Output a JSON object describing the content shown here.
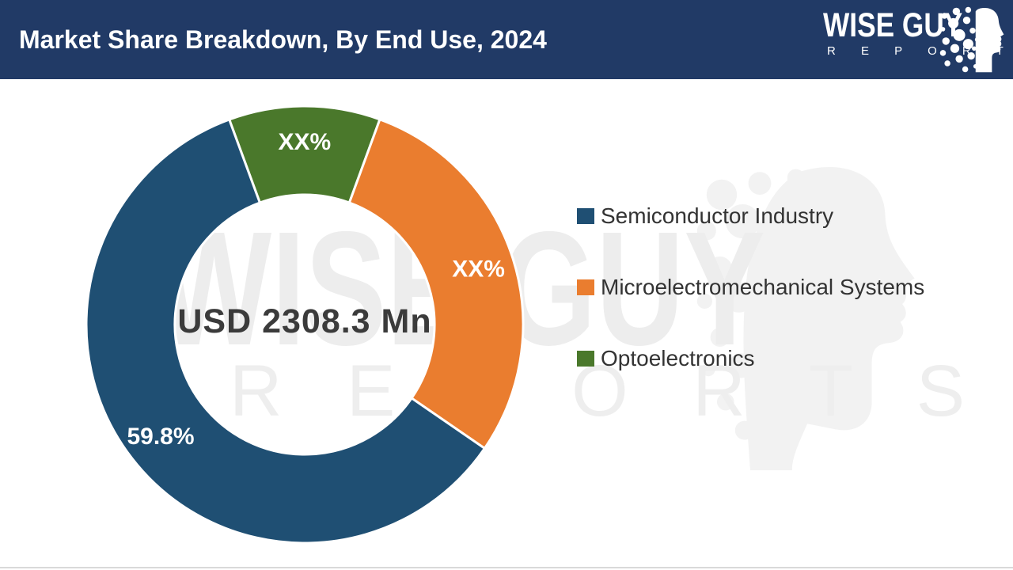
{
  "header": {
    "title": "Market Share Breakdown, By End Use, 2024",
    "logo": {
      "line1": "WISE GUY",
      "line2": "R E P O R T S",
      "icon": "dotted-head-icon"
    }
  },
  "watermark": {
    "line1": "WISE GUY",
    "line2": "R E P O R T S",
    "icon": "dotted-head-watermark"
  },
  "chart_data": {
    "type": "donut",
    "title": "Market Share Breakdown, By End Use, 2024",
    "center_label": "USD 2308.3 Mn",
    "start_angle_deg": -20.2,
    "render_order": [
      2,
      1,
      0
    ],
    "label_radius_ratio": 0.835,
    "gap_color": "#ffffff",
    "legend_position": "right",
    "segments": [
      {
        "label": "Semiconductor Industry",
        "display": "59.8%",
        "value": 59.8,
        "color": "#1f4f73"
      },
      {
        "label": "Microelectromechanical Systems",
        "display": "XX%",
        "value": 29.0,
        "color": "#ea7d2f"
      },
      {
        "label": "Optoelectronics",
        "display": "XX%",
        "value": 11.2,
        "color": "#4a782b"
      }
    ]
  }
}
